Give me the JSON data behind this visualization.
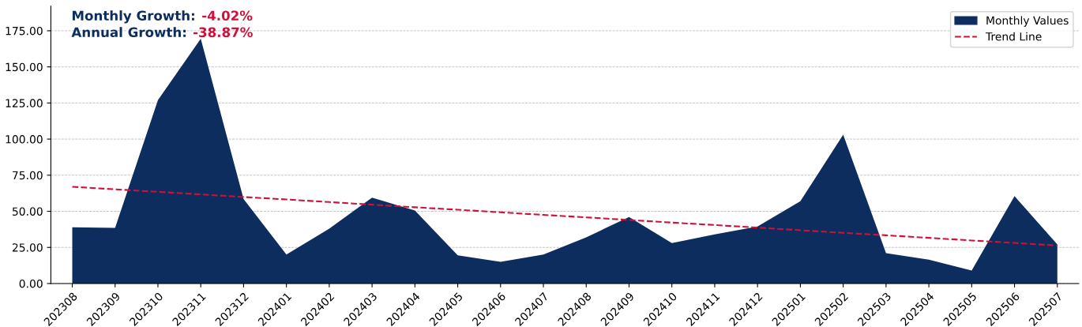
{
  "chart_data": {
    "type": "area",
    "categories": [
      "202308",
      "202309",
      "202310",
      "202311",
      "202312",
      "202401",
      "202402",
      "202403",
      "202404",
      "202405",
      "202406",
      "202407",
      "202408",
      "202409",
      "202410",
      "202411",
      "202412",
      "202501",
      "202502",
      "202503",
      "202504",
      "202505",
      "202506",
      "202507"
    ],
    "series": [
      {
        "name": "Monthly Values",
        "color": "#0d2d5e",
        "values": [
          39,
          38.5,
          127,
          169.5,
          58.5,
          20,
          38,
          59.5,
          50.5,
          19.5,
          15,
          20,
          32,
          46,
          28,
          34,
          39.5,
          57,
          103,
          21,
          16.5,
          9,
          60.5,
          27
        ]
      },
      {
        "name": "Trend Line",
        "type": "line",
        "line_style": "dashed",
        "color": "#d0103a",
        "values": [
          67.0,
          65.2,
          63.5,
          61.7,
          59.9,
          58.2,
          56.4,
          54.6,
          52.8,
          51.1,
          49.3,
          47.5,
          45.8,
          44.0,
          42.2,
          40.5,
          38.7,
          36.9,
          35.1,
          33.4,
          31.6,
          29.8,
          28.1,
          26.3
        ]
      }
    ],
    "ylim": [
      0,
      192
    ],
    "yticks": [
      {
        "value": 0,
        "label": "0.00"
      },
      {
        "value": 25,
        "label": "25.00"
      },
      {
        "value": 50,
        "label": "50.00"
      },
      {
        "value": 75,
        "label": "75.00"
      },
      {
        "value": 100,
        "label": "100.00"
      },
      {
        "value": 125,
        "label": "125.00"
      },
      {
        "value": 150,
        "label": "150.00"
      },
      {
        "value": 175,
        "label": "175.00"
      }
    ],
    "grid": "y",
    "legend": "top right",
    "annotations": [
      "Monthly Growth:",
      "-4.02%",
      "Annual Growth:",
      "-38.87%"
    ]
  }
}
